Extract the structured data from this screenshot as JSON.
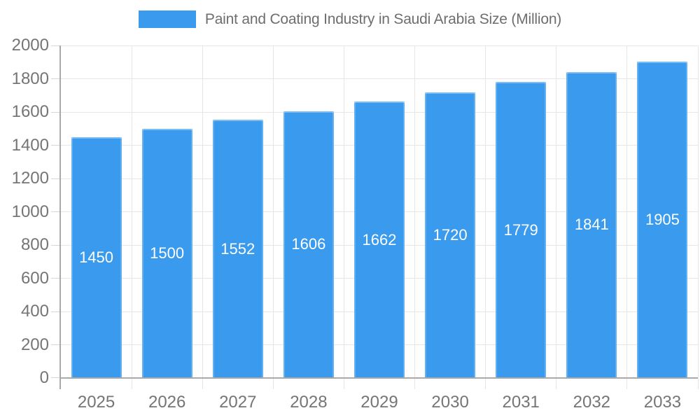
{
  "chart_data": {
    "type": "bar",
    "title": "Paint and Coating Industry in Saudi Arabia Size (Million)",
    "categories": [
      "2025",
      "2026",
      "2027",
      "2028",
      "2029",
      "2030",
      "2031",
      "2032",
      "2033"
    ],
    "values": [
      1450,
      1500,
      1552,
      1606,
      1662,
      1720,
      1779,
      1841,
      1905
    ],
    "xlabel": "",
    "ylabel": "",
    "ylim": [
      0,
      2000
    ],
    "yticks": [
      0,
      200,
      400,
      600,
      800,
      1000,
      1200,
      1400,
      1600,
      1800,
      2000
    ],
    "grid": true,
    "legend_position": "top",
    "value_label_position": "inside-center"
  },
  "colors": {
    "bar": "#399AEE",
    "value_label": "#FFFFFF",
    "axis_text": "#757575",
    "legend_text": "#6E6E6E",
    "gridline": "#E6E6E6",
    "tick": "#D6D6D6",
    "axis_line": "#A9A9A9",
    "background": "#FFFFFF"
  }
}
